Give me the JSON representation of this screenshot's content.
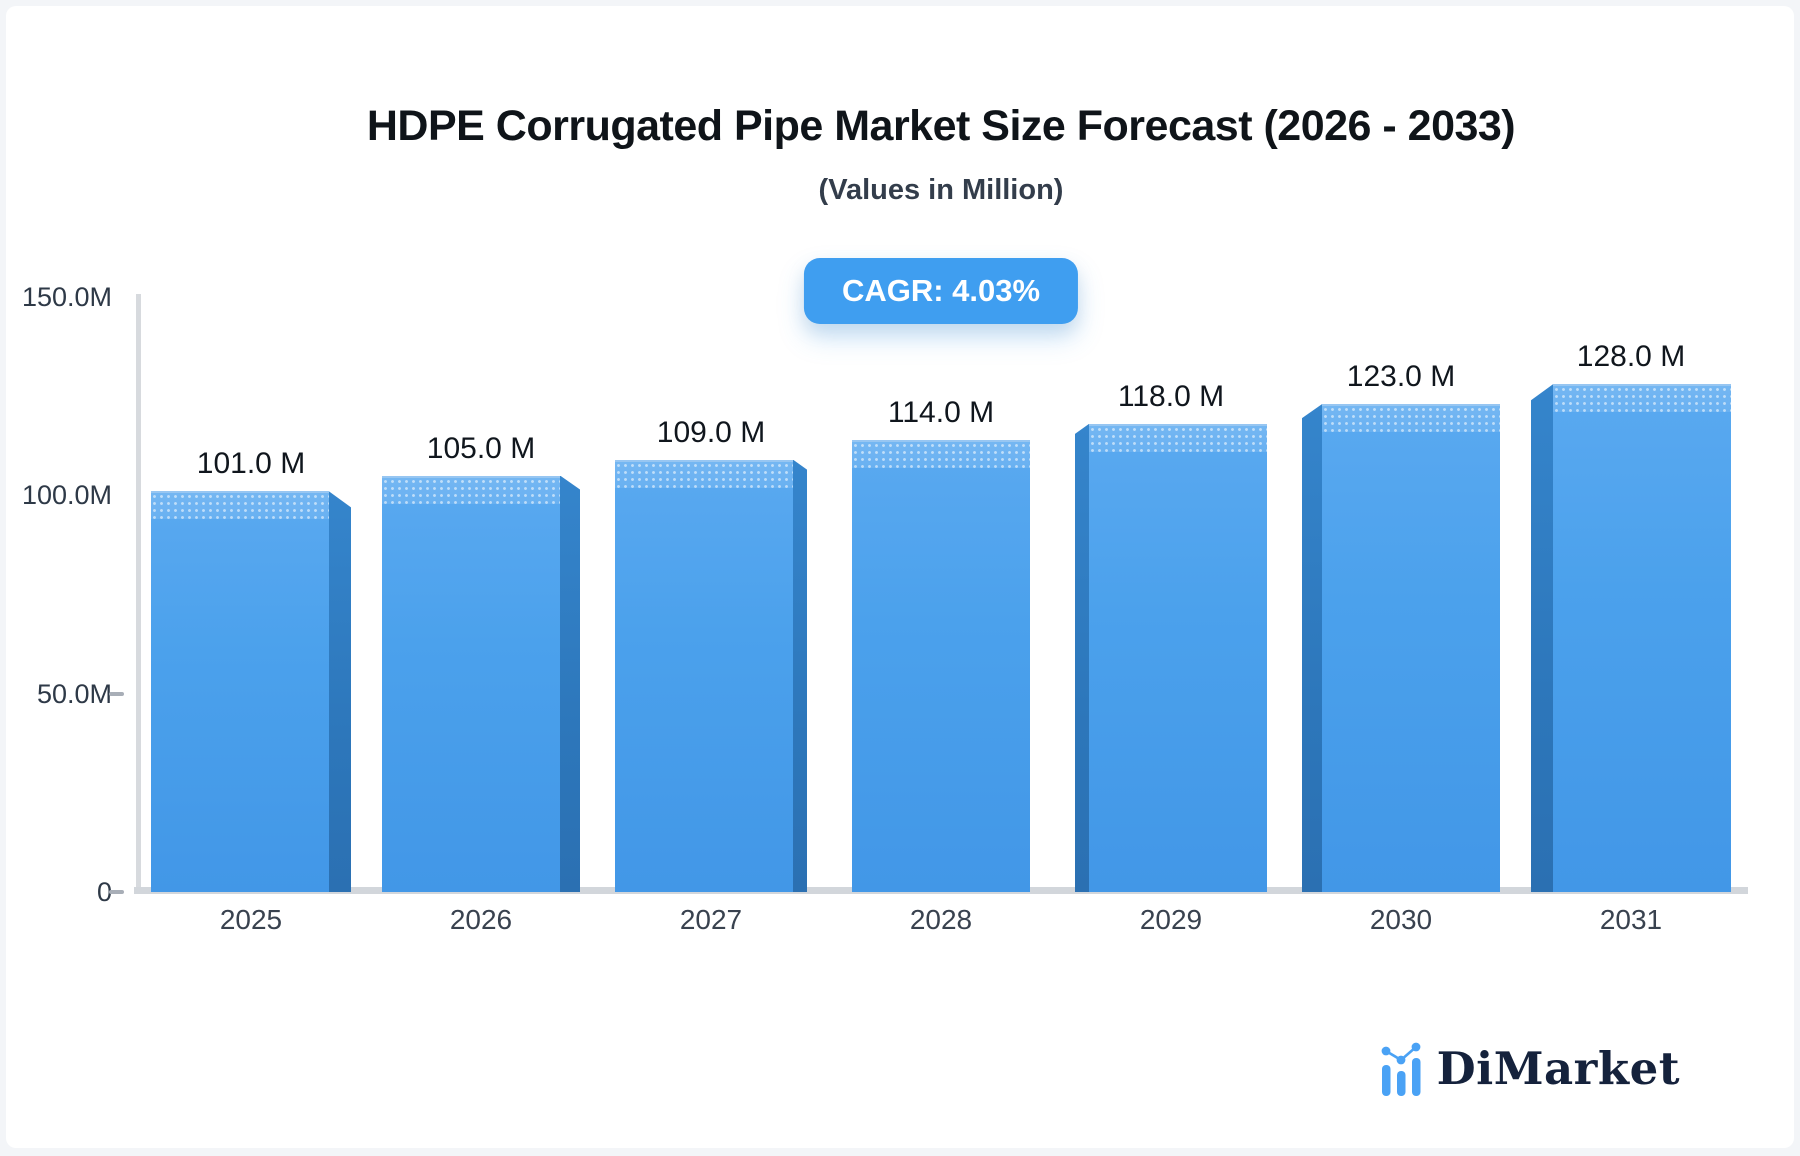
{
  "header": {
    "title": "HDPE Corrugated Pipe Market Size Forecast (2026 - 2033)",
    "subtitle": "(Values in Million)",
    "cagr_badge": "CAGR: 4.03%",
    "cagr_percent": 4.03
  },
  "chart_data": {
    "type": "bar",
    "title": "HDPE Corrugated Pipe Market Size Forecast (2026 - 2033)",
    "subtitle": "(Values in Million)",
    "unit": "Million",
    "categories": [
      "2025",
      "2026",
      "2027",
      "2028",
      "2029",
      "2030",
      "2031"
    ],
    "values": [
      101,
      105,
      109,
      114,
      118,
      123,
      128
    ],
    "value_labels": [
      "101.0 M",
      "105.0 M",
      "109.0 M",
      "114.0 M",
      "118.0 M",
      "123.0 M",
      "128.0 M"
    ],
    "xlabel": "",
    "ylabel": "",
    "ylim": [
      0,
      150
    ],
    "yticks": [
      {
        "label": "150.0M",
        "value": 150,
        "dash": false
      },
      {
        "label": "100.0M",
        "value": 100,
        "dash": false
      },
      {
        "label": "50.0M",
        "value": 50,
        "dash": true
      },
      {
        "label": "0",
        "value": 0,
        "dash": true
      }
    ],
    "grid": false,
    "legend": false,
    "bar_color": "#4aa0ec",
    "bar_side_color": "#2e7abf",
    "accent_color": "#3f9ef0"
  },
  "footer": {
    "brand": "DiMarket",
    "logo_icon": "bar-line-chart-icon",
    "logo_blue": "#4aa2f5",
    "logo_navy": "#15223c"
  }
}
